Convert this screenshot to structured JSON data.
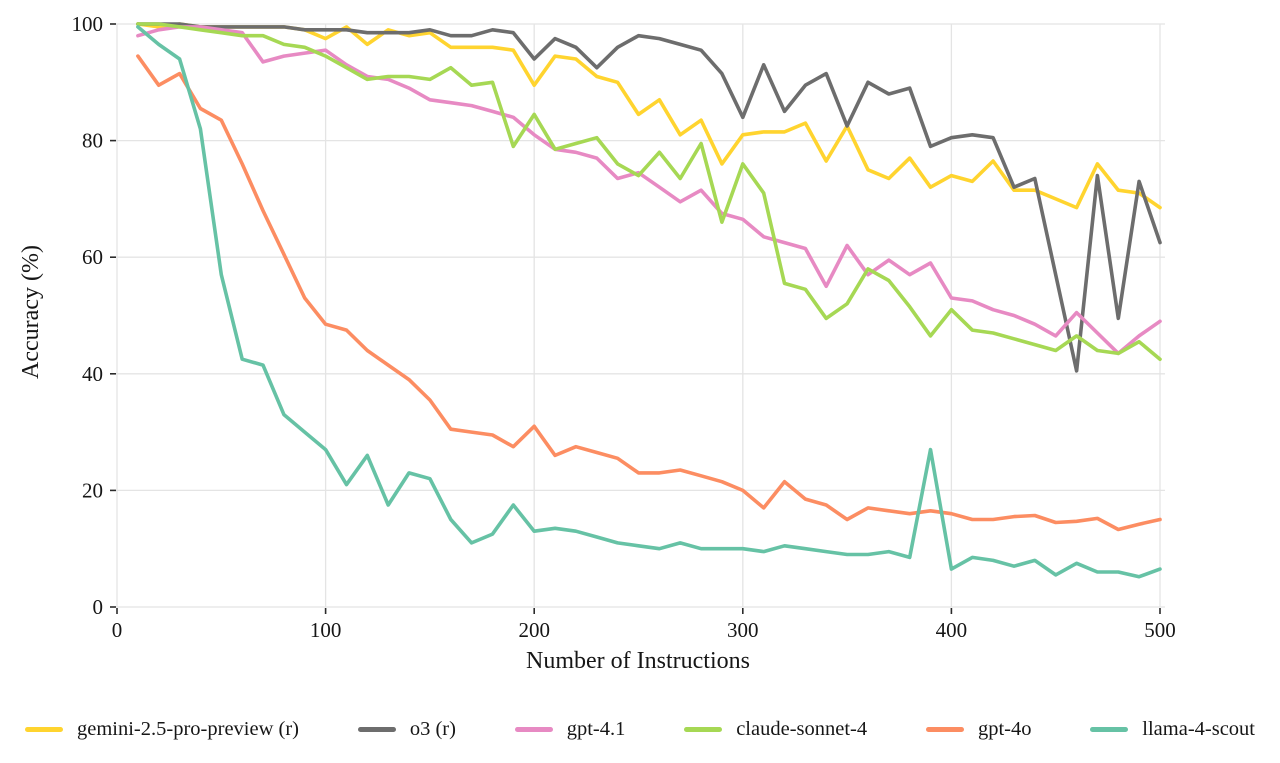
{
  "chart_data": {
    "type": "line",
    "title": "",
    "xlabel": "Number of Instructions",
    "ylabel": "Accuracy (%)",
    "xlim": [
      0,
      500
    ],
    "ylim": [
      0,
      100
    ],
    "x_ticks": [
      "0",
      "100",
      "200",
      "300",
      "400",
      "500"
    ],
    "x_tick_values": [
      0,
      100,
      200,
      300,
      400,
      500
    ],
    "y_ticks": [
      "0",
      "20",
      "40",
      "60",
      "80",
      "100"
    ],
    "y_tick_values": [
      0,
      20,
      40,
      60,
      80,
      100
    ],
    "grid": true,
    "legend_position": "bottom",
    "x": [
      10,
      20,
      30,
      40,
      50,
      60,
      70,
      80,
      90,
      100,
      110,
      120,
      130,
      140,
      150,
      160,
      170,
      180,
      190,
      200,
      210,
      220,
      230,
      240,
      250,
      260,
      270,
      280,
      290,
      300,
      310,
      320,
      330,
      340,
      350,
      360,
      370,
      380,
      390,
      400,
      410,
      420,
      430,
      440,
      450,
      460,
      470,
      480,
      490,
      500
    ],
    "series": [
      {
        "name": "gemini-2.5-pro-preview (r)",
        "color": "#ffd42f",
        "values": [
          100,
          99.5,
          100,
          99.5,
          99.5,
          99.5,
          99.5,
          99.5,
          99,
          97.5,
          99.5,
          96.5,
          99,
          98,
          98.5,
          96,
          96,
          96,
          95.5,
          89.5,
          94.5,
          94,
          91,
          90,
          84.5,
          87,
          81,
          83.5,
          76,
          81,
          81.5,
          81.5,
          83,
          76.5,
          82.5,
          75,
          73.5,
          77,
          72,
          74,
          73,
          76.5,
          71.5,
          71.5,
          70,
          68.5,
          76,
          71.5,
          71,
          68.5
        ]
      },
      {
        "name": "o3 (r)",
        "color": "#6d6d6d",
        "values": [
          100,
          100,
          100,
          99.5,
          99.5,
          99.5,
          99.5,
          99.5,
          99,
          99,
          99,
          98.5,
          98.5,
          98.5,
          99,
          98,
          98,
          99,
          98.5,
          94,
          97.5,
          96,
          92.5,
          96,
          98,
          97.5,
          96.5,
          95.5,
          91.5,
          84,
          93,
          85,
          89.5,
          91.5,
          82.5,
          90,
          88,
          89,
          79,
          80.5,
          81,
          80.5,
          72,
          73.5,
          57,
          40.5,
          74,
          49.5,
          73,
          62.5
        ]
      },
      {
        "name": "gpt-4.1",
        "color": "#e78ac3",
        "values": [
          98,
          99,
          99.5,
          99.5,
          99,
          98.5,
          93.5,
          94.5,
          95,
          95.5,
          93,
          91,
          90.5,
          89,
          87,
          86.5,
          86,
          85,
          84,
          81,
          78.5,
          78,
          77,
          73.5,
          74.5,
          72,
          69.5,
          71.5,
          67.5,
          66.5,
          63.5,
          62.5,
          61.5,
          55,
          62,
          57,
          59.5,
          57,
          59,
          53,
          52.5,
          51,
          50,
          48.5,
          46.5,
          50.5,
          47,
          43.5,
          46.5,
          49
        ]
      },
      {
        "name": "claude-sonnet-4",
        "color": "#a6d854",
        "values": [
          100,
          100,
          99.5,
          99,
          98.5,
          98,
          98,
          96.5,
          96,
          94.5,
          92.5,
          90.5,
          91,
          91,
          90.5,
          92.5,
          89.5,
          90,
          79,
          84.5,
          78.5,
          79.5,
          80.5,
          76,
          74,
          78,
          73.5,
          79.5,
          66,
          76,
          71,
          55.5,
          54.5,
          49.5,
          52,
          58,
          56,
          51.5,
          46.5,
          51,
          47.5,
          47,
          46,
          45,
          44,
          46.5,
          44,
          43.5,
          45.5,
          42.5
        ]
      },
      {
        "name": "gpt-4o",
        "color": "#fc8d62",
        "values": [
          94.5,
          89.5,
          91.5,
          85.5,
          83.5,
          76,
          68,
          60.5,
          53,
          48.5,
          47.5,
          44,
          41.5,
          39,
          35.5,
          30.5,
          30,
          29.5,
          27.5,
          31,
          26,
          27.5,
          26.5,
          25.5,
          23,
          23,
          23.5,
          22.5,
          21.5,
          20,
          17,
          21.5,
          18.5,
          17.5,
          15,
          17,
          16.5,
          16,
          16.5,
          16,
          15,
          15,
          15.5,
          15.7,
          14.5,
          14.7,
          15.2,
          13.3,
          14.2,
          15
        ]
      },
      {
        "name": "llama-4-scout",
        "color": "#66c2a5",
        "values": [
          99.5,
          96.5,
          94,
          82,
          57,
          42.5,
          41.5,
          33,
          30,
          27,
          21,
          26,
          17.5,
          23,
          22,
          15,
          11,
          12.5,
          17.5,
          13,
          13.5,
          13,
          12,
          11,
          10.5,
          10,
          11,
          10,
          10,
          10,
          9.5,
          10.5,
          10,
          9.5,
          9,
          9,
          9.5,
          8.5,
          27,
          6.5,
          8.5,
          8,
          7,
          8,
          5.5,
          7.5,
          6,
          6,
          5.2,
          6.5
        ]
      }
    ]
  },
  "colors": {
    "grid": "#e4e4e4",
    "tick": "#2b2b2b",
    "text": "#161616",
    "background": "#ffffff"
  }
}
